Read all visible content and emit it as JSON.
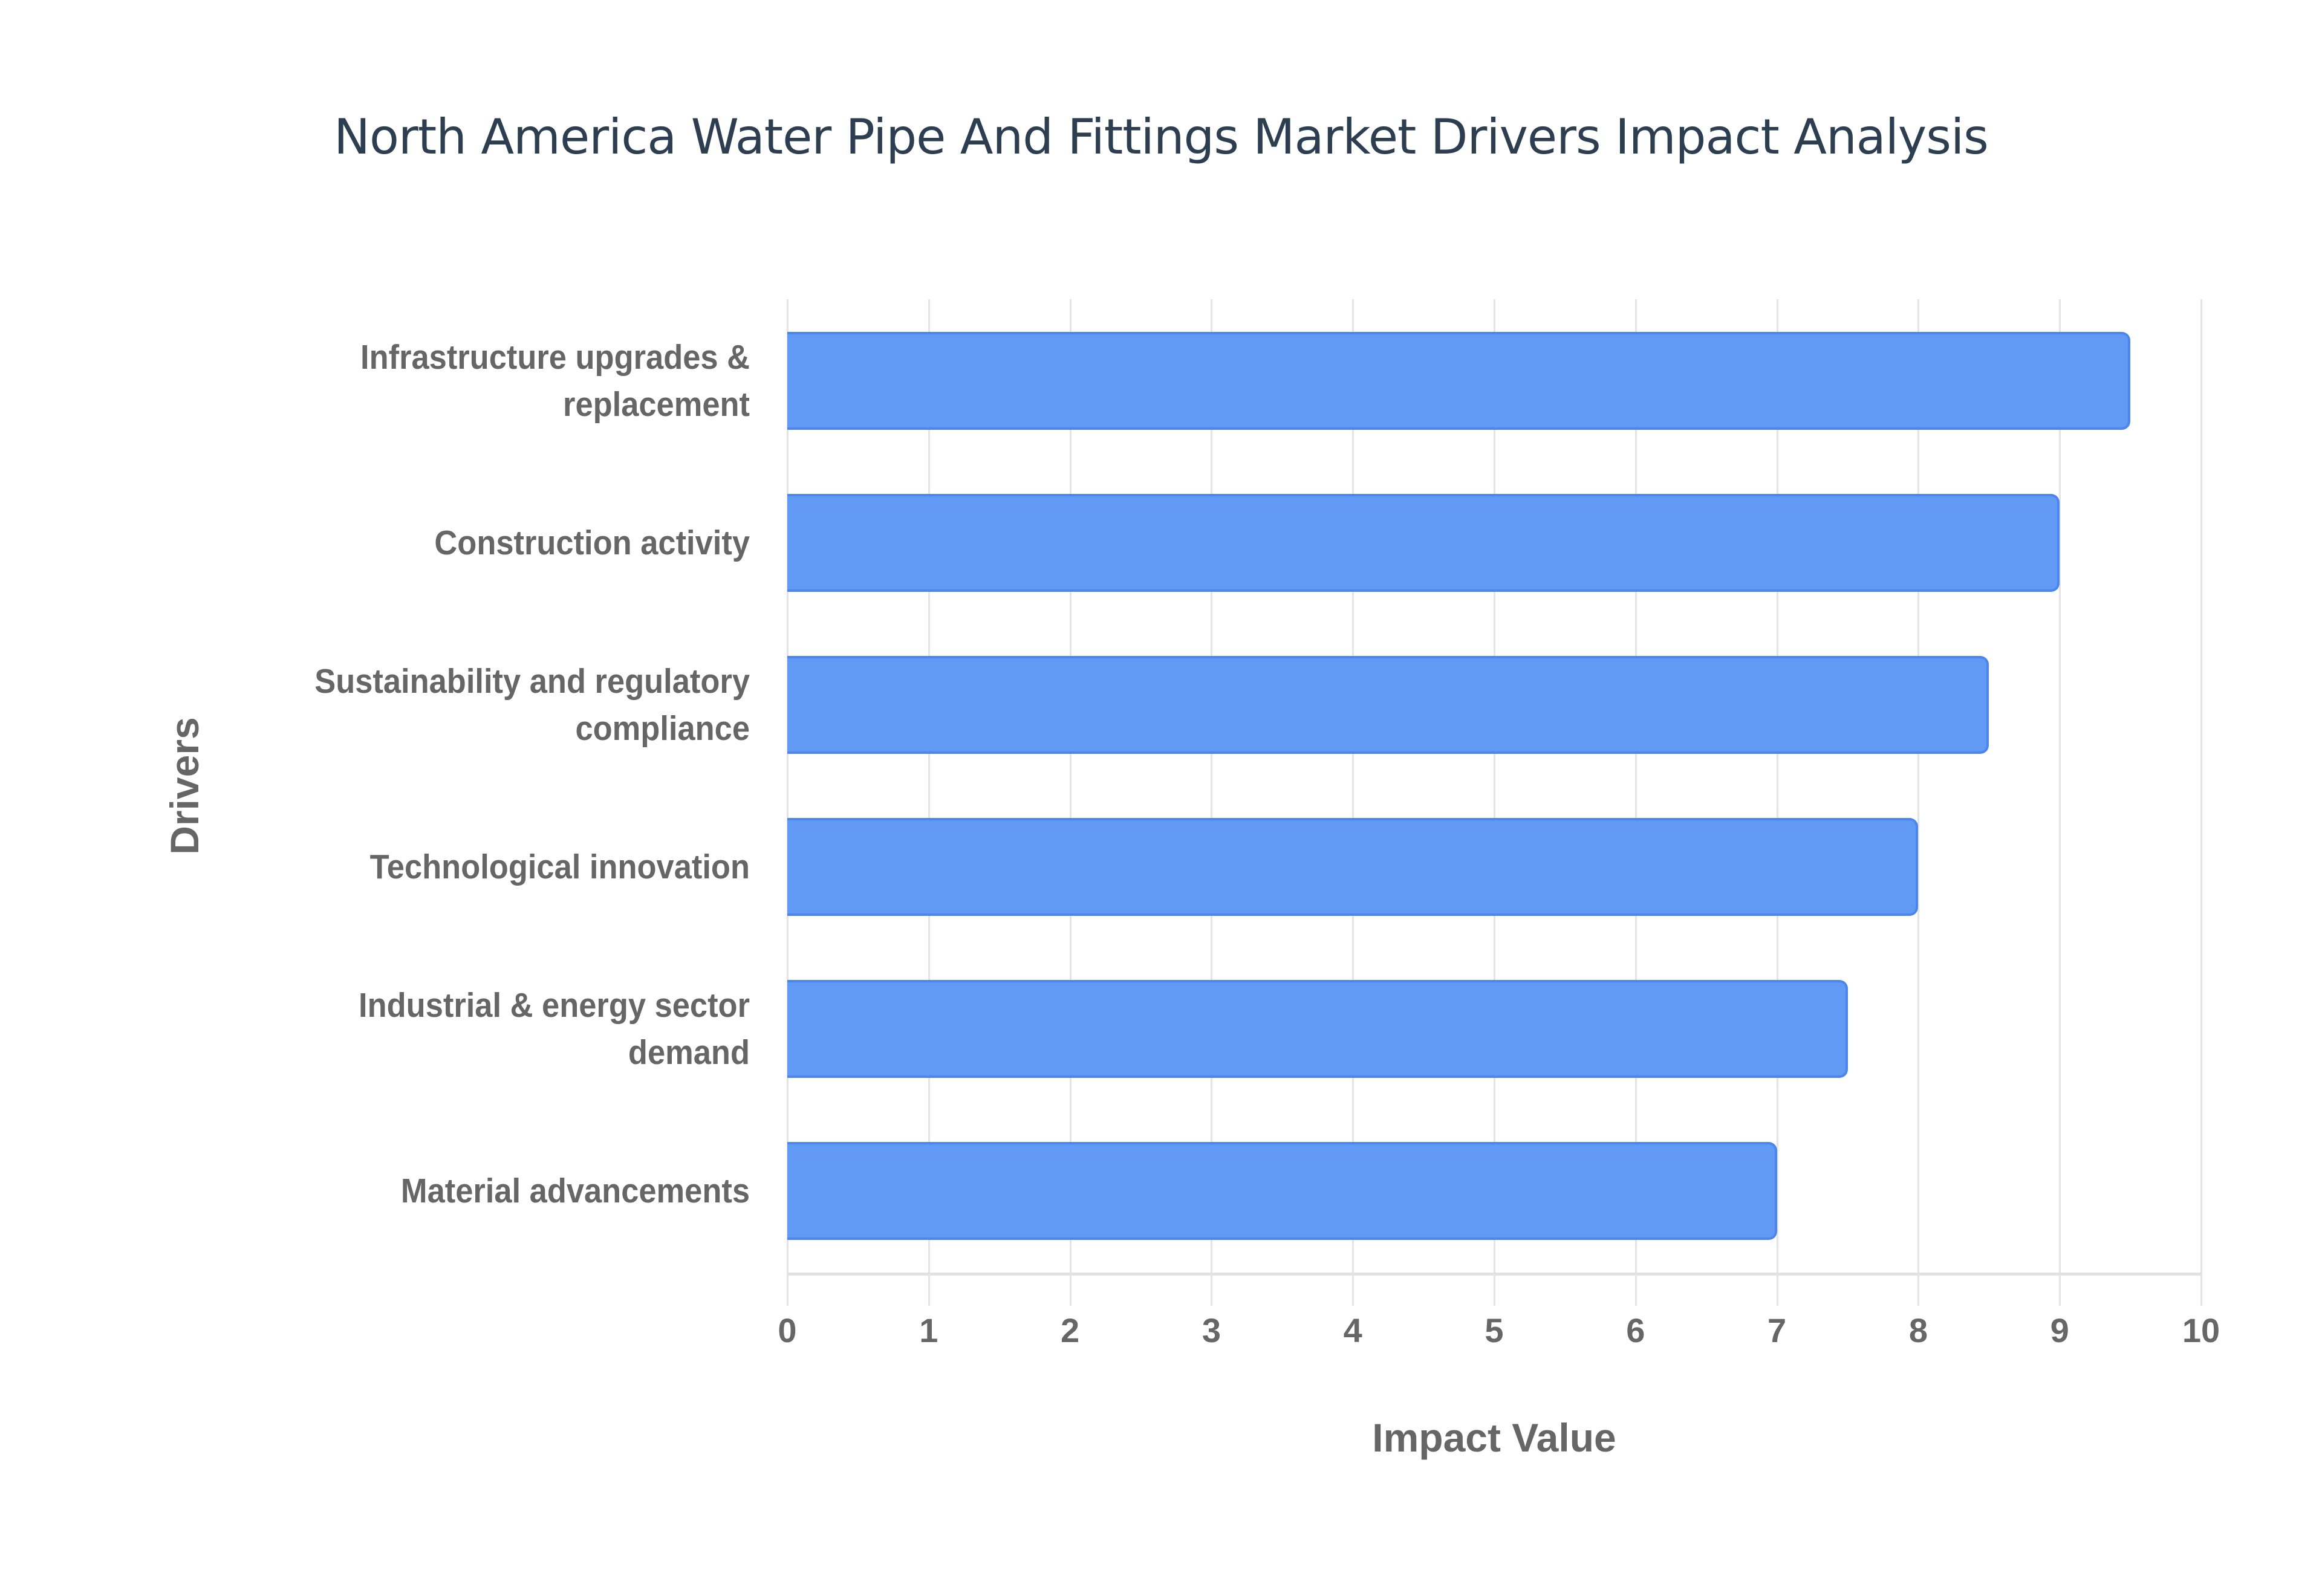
{
  "chart_data": {
    "type": "bar",
    "orientation": "horizontal",
    "title": "North America Water Pipe And Fittings Market Drivers Impact Analysis",
    "xlabel": "Impact Value",
    "ylabel": "Drivers",
    "xlim": [
      0,
      10
    ],
    "x_ticks": [
      "0",
      "1",
      "2",
      "3",
      "4",
      "5",
      "6",
      "7",
      "8",
      "9",
      "10"
    ],
    "grid": true,
    "legend": null,
    "categories": [
      "Infrastructure upgrades & replacement",
      "Construction activity",
      "Sustainability and regulatory compliance",
      "Technological innovation",
      "Industrial & energy sector demand",
      "Material advancements"
    ],
    "category_lines": [
      [
        "Infrastructure upgrades &",
        "replacement"
      ],
      [
        "Construction activity"
      ],
      [
        "Sustainability and regulatory",
        "compliance"
      ],
      [
        "Technological innovation"
      ],
      [
        "Industrial & energy sector",
        "demand"
      ],
      [
        "Material advancements"
      ]
    ],
    "values": [
      9.5,
      9.0,
      8.5,
      8.0,
      7.5,
      7.0
    ],
    "colors": {
      "bar_fill": "#6199f5",
      "bar_border": "#4a86ee",
      "title": "#2c3e50",
      "axis_text": "#666666",
      "grid": "#e4e4e4"
    }
  }
}
